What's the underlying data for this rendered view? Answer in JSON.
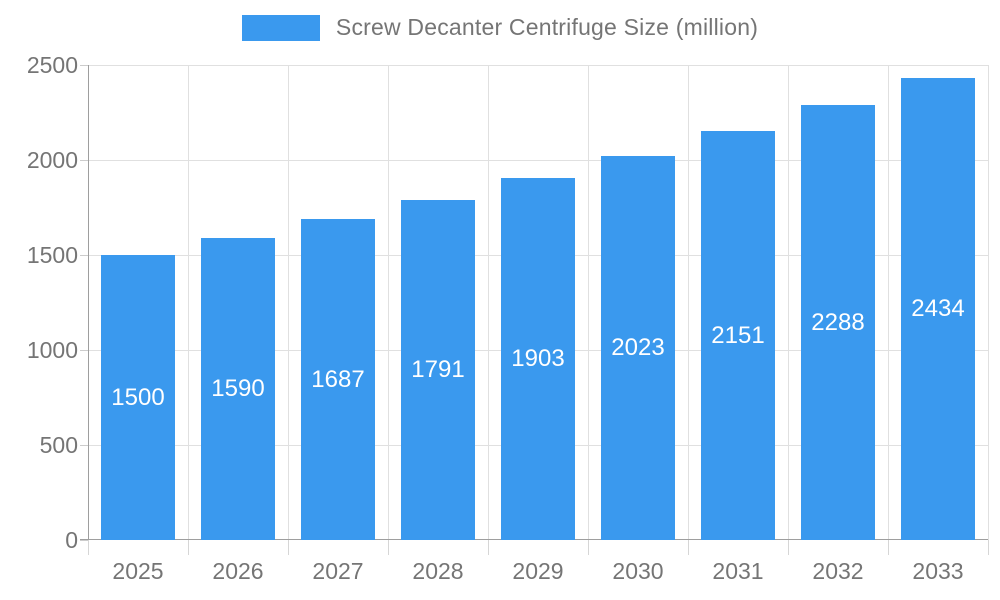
{
  "chart_data": {
    "type": "bar",
    "title": "Screw Decanter Centrifuge Size (million)",
    "legend_position": "top",
    "categories": [
      "2025",
      "2026",
      "2027",
      "2028",
      "2029",
      "2030",
      "2031",
      "2032",
      "2033"
    ],
    "series": [
      {
        "name": "Screw Decanter Centrifuge Size (million)",
        "values": [
          1500,
          1590,
          1687,
          1791,
          1903,
          2023,
          2151,
          2288,
          2434
        ]
      }
    ],
    "xlabel": "",
    "ylabel": "",
    "ylim": [
      0,
      2500
    ],
    "yticks": [
      0,
      500,
      1000,
      1500,
      2000,
      2500
    ],
    "grid": true,
    "colors": {
      "bar": "#3a99ee",
      "value_label": "#ffffff",
      "axis_text": "#757575",
      "gridline": "#e0e0e0",
      "axis_line": "#9e9e9e"
    }
  }
}
